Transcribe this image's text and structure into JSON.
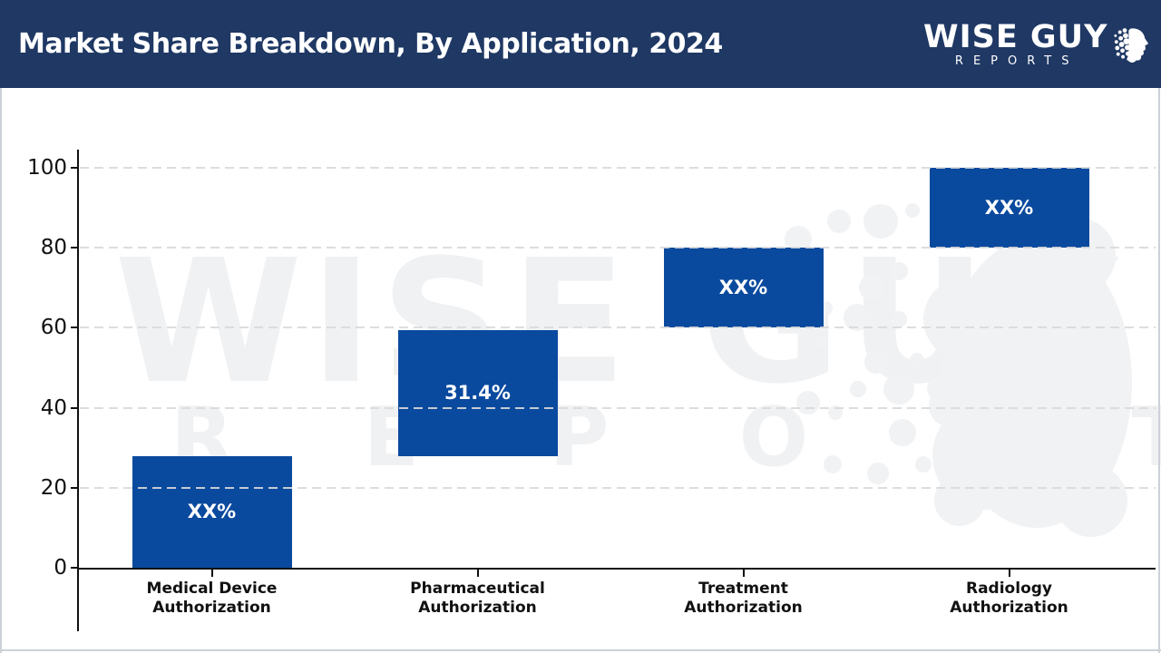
{
  "header": {
    "title": "Market Share Breakdown, By Application, 2024",
    "brand": {
      "name_top": "WISE GUY",
      "name_bottom": "REPORTS"
    },
    "colors": {
      "header_bg": "#1f3864",
      "header_text": "#ffffff"
    }
  },
  "watermark": {
    "line1": "WISE GUY",
    "line2": "R E P O R T S"
  },
  "chart_data": {
    "type": "bar",
    "subtype": "floating-waterfall",
    "title": "Market Share Breakdown, By Application, 2024",
    "xlabel": "",
    "ylabel": "",
    "categories": [
      {
        "line1": "Medical Device",
        "line2": "Authorization"
      },
      {
        "line1": "Pharmaceutical",
        "line2": "Authorization"
      },
      {
        "line1": "Treatment",
        "line2": "Authorization"
      },
      {
        "line1": "Radiology",
        "line2": "Authorization"
      }
    ],
    "bars": [
      {
        "start": 0,
        "end": 28,
        "label": "XX%"
      },
      {
        "start": 28,
        "end": 59.4,
        "label": "31.4%"
      },
      {
        "start": 60,
        "end": 80,
        "label": "XX%"
      },
      {
        "start": 80,
        "end": 100,
        "label": "XX%"
      }
    ],
    "yticks": [
      0,
      20,
      40,
      60,
      80,
      100
    ],
    "ylim": [
      0,
      104.5
    ],
    "grid": {
      "axis": "y",
      "style": "dashed",
      "color": "#d9d9d9",
      "above_bars": true
    },
    "legend": "none",
    "bar_color": "#0a4a9e",
    "bar_label_color": "#ffffff",
    "axis_color": "#111111",
    "tick_label_color": "#111111"
  }
}
